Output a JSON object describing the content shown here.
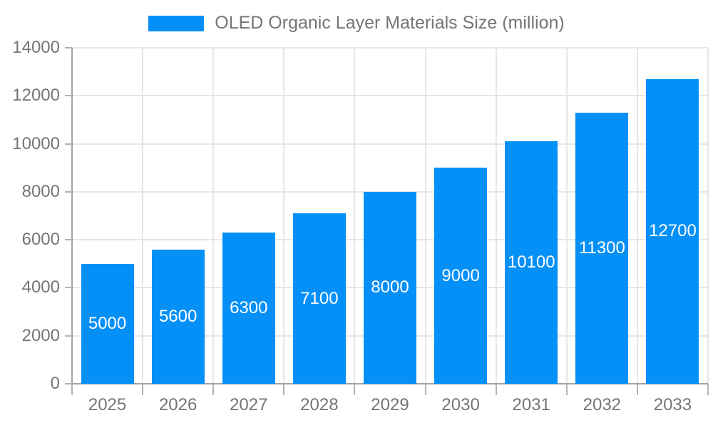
{
  "chart_data": {
    "type": "bar",
    "series_name": "OLED Organic Layer Materials Size (million)",
    "categories": [
      "2025",
      "2026",
      "2027",
      "2028",
      "2029",
      "2030",
      "2031",
      "2032",
      "2033"
    ],
    "values": [
      5000,
      5600,
      6300,
      7100,
      8000,
      9000,
      10100,
      11300,
      12700
    ],
    "value_labels": [
      "5000",
      "5600",
      "6300",
      "7100",
      "8000",
      "9000",
      "10100",
      "11300",
      "12700"
    ],
    "ytick_labels": [
      "0",
      "2000",
      "4000",
      "6000",
      "8000",
      "10000",
      "12000",
      "14000"
    ],
    "ylim": [
      0,
      14000
    ],
    "ytick_step": 2000,
    "title": "",
    "xlabel": "",
    "ylabel": "",
    "legend_position": "top",
    "grid": true,
    "bar_color": "#0590f8",
    "value_label_color": "#ffffff",
    "axis_text_color": "#757575",
    "gridline_color": "#e6e6e6",
    "axis_line_color": "#a3a3a3"
  }
}
